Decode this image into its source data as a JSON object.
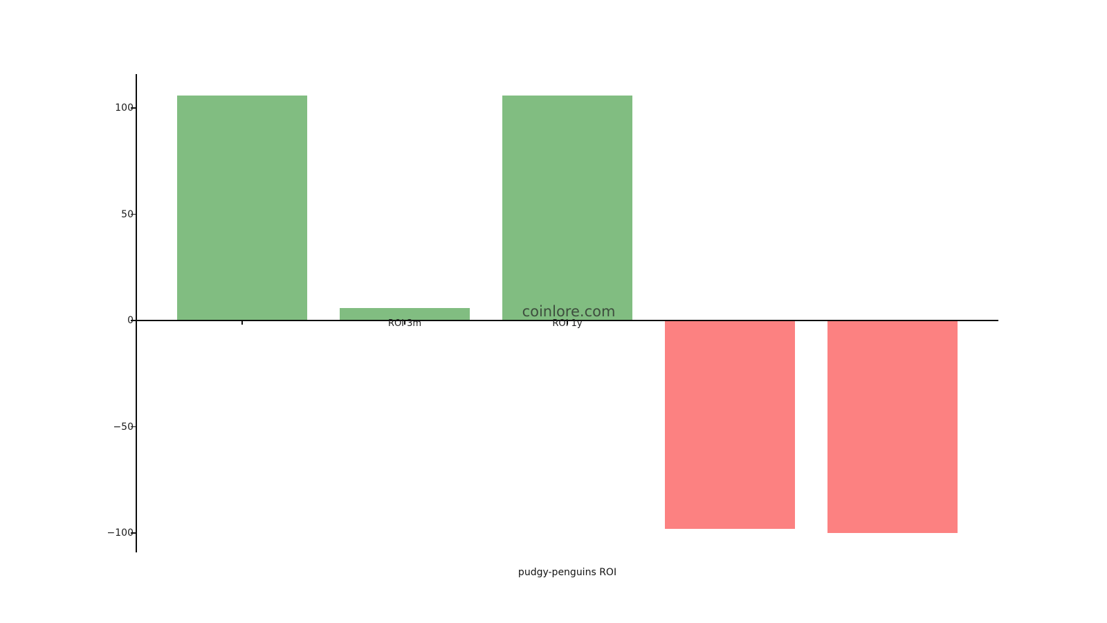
{
  "watermark": "coinlore.com",
  "chart_data": {
    "type": "bar",
    "title": "",
    "xlabel": "pudgy-penguins ROI",
    "ylabel": "",
    "categories": [
      "",
      "ROI 3m",
      "ROI 1y",
      "",
      ""
    ],
    "values": [
      106,
      6,
      106,
      -98,
      -100
    ],
    "positive_color": "#81bd81",
    "negative_color": "#fc8181",
    "yticks": [
      100,
      50,
      0,
      -50,
      -100
    ],
    "ytick_labels": [
      "100",
      "50",
      "0",
      "−50",
      "−100"
    ],
    "ylim": [
      -110,
      117
    ],
    "grid": false,
    "legend": "none",
    "axis_color": "#0a0a0a"
  }
}
